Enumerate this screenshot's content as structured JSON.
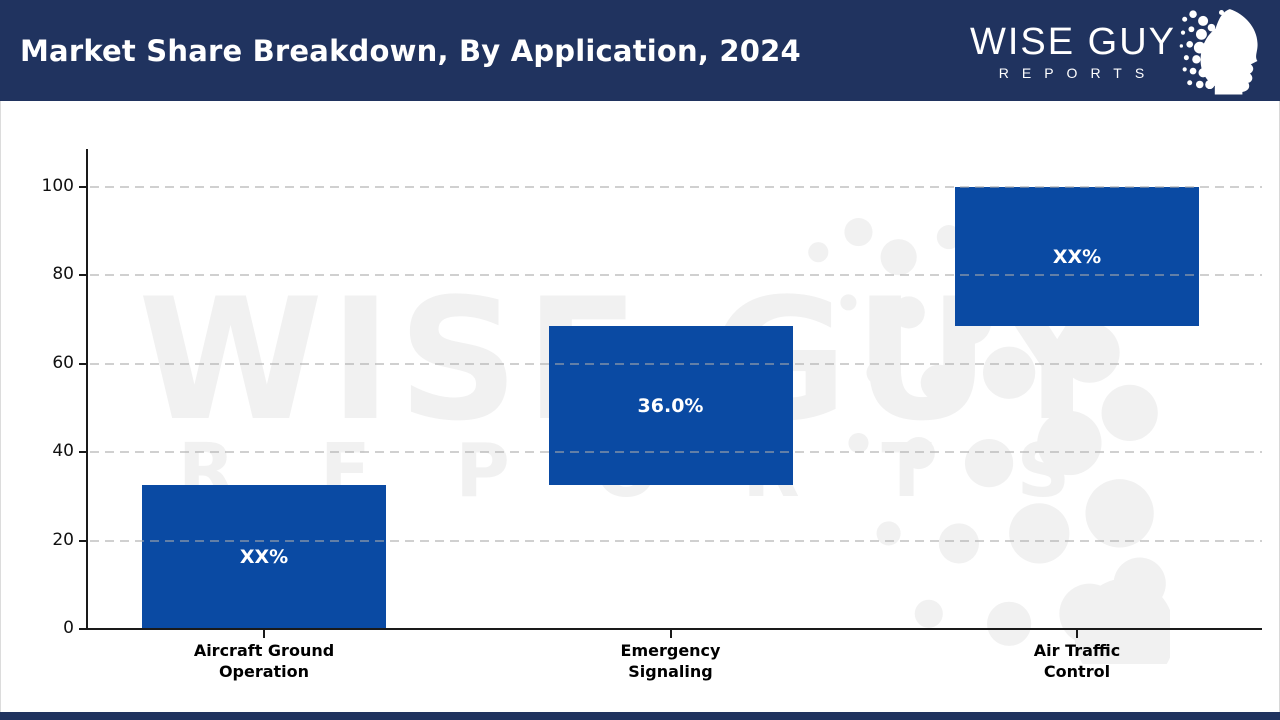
{
  "header": {
    "title": "Market Share Breakdown, By Application, 2024",
    "logo_line1": "WISE GUY",
    "logo_line2": "REPORTS"
  },
  "watermark": {
    "line1": "WISE GUY",
    "line2": "REPORTS"
  },
  "chart_data": {
    "type": "bar",
    "variant": "waterfall",
    "title": "Market Share Breakdown, By Application, 2024",
    "categories": [
      "Aircraft Ground Operation",
      "Emergency Signaling",
      "Air Traffic Control"
    ],
    "category_label_lines": [
      [
        "Aircraft Ground",
        "Operation"
      ],
      [
        "Emergency",
        "Signaling"
      ],
      [
        "Air Traffic",
        "Control"
      ]
    ],
    "bars": [
      {
        "category": "Aircraft Ground Operation",
        "label": "XX%",
        "start": 0,
        "end": 32.5
      },
      {
        "category": "Emergency Signaling",
        "label": "36.0%",
        "start": 32.5,
        "end": 68.5
      },
      {
        "category": "Air Traffic Control",
        "label": "XX%",
        "start": 68.5,
        "end": 100
      }
    ],
    "yticks": [
      0,
      20,
      40,
      60,
      80,
      100
    ],
    "ylim": [
      0,
      108.5
    ],
    "xlabel": "",
    "ylabel": "",
    "legend": "none",
    "grid": {
      "axis": "y",
      "style": "dashed"
    }
  },
  "colors": {
    "header_bg": "#20335f",
    "footer_bg": "#20335f",
    "bar": "#0a4aa3",
    "bar_value_text": "#ffffff",
    "watermark": "#f1f1f1",
    "axis": "#1a1a1a",
    "gridline": "#d8d8d8"
  }
}
